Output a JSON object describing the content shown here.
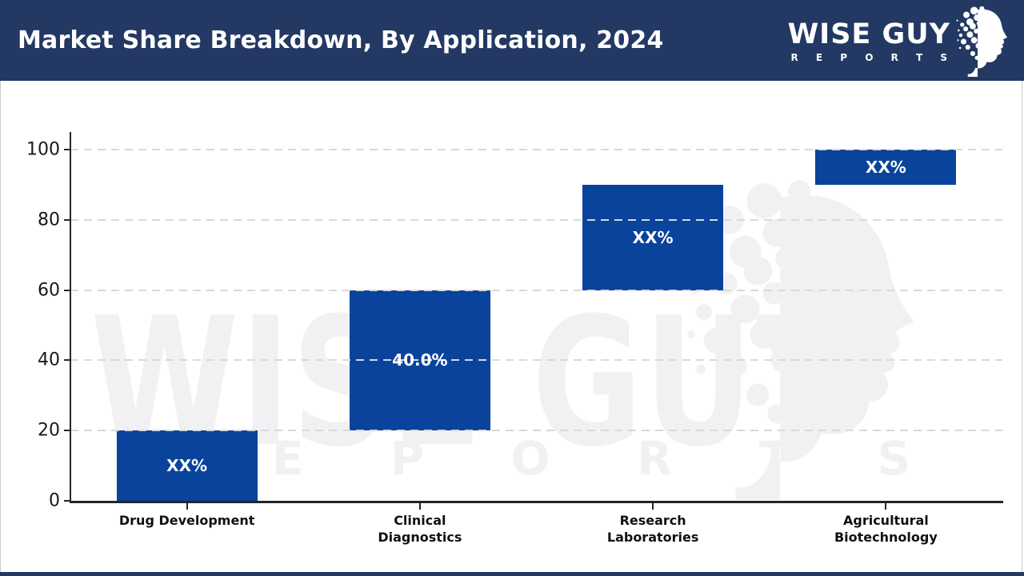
{
  "header": {
    "title": "Market Share Breakdown, By Application, 2024",
    "logo": {
      "line1": "WISE GUY",
      "line2": "R E P O R T S"
    }
  },
  "watermark": {
    "line1": "WISE GUY",
    "line2": "R E P O R T S"
  },
  "colors": {
    "header_bg": "#233863",
    "bar": "#09439b",
    "grid": "#d9d9d9",
    "axis": "#262626",
    "bar_label": "#ffffff",
    "watermark": "#f1f1f4"
  },
  "chart_data": {
    "type": "bar",
    "subtype": "floating-waterfall",
    "title": "Market Share Breakdown, By Application, 2024",
    "categories": [
      "Drug Development",
      "Clinical Diagnostics",
      "Research Laboratories",
      "Agricultural Biotechnology"
    ],
    "category_label_lines": [
      [
        "Drug Development"
      ],
      [
        "Clinical",
        "Diagnostics"
      ],
      [
        "Research",
        "Laboratories"
      ],
      [
        "Agricultural",
        "Biotechnology"
      ]
    ],
    "segments": [
      {
        "category": "Drug Development",
        "start": 0,
        "end": 20,
        "label": "XX%"
      },
      {
        "category": "Clinical Diagnostics",
        "start": 20,
        "end": 60,
        "label": "40.0%"
      },
      {
        "category": "Research Laboratories",
        "start": 60,
        "end": 90,
        "label": "XX%"
      },
      {
        "category": "Agricultural Biotechnology",
        "start": 90,
        "end": 100,
        "label": "XX%"
      }
    ],
    "yticks": [
      0,
      20,
      40,
      60,
      80,
      100
    ],
    "ylim": [
      0,
      105
    ],
    "xlabel": "",
    "ylabel": "",
    "grid": "horizontal-dashed-over-bars",
    "legend": "none"
  }
}
